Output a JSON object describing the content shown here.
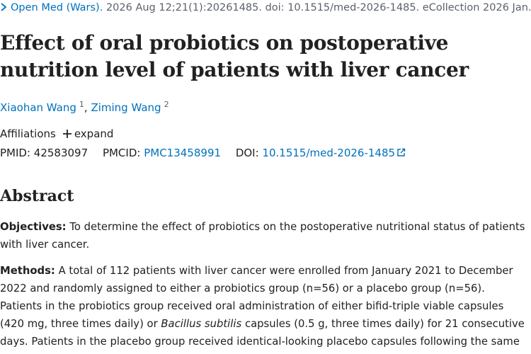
{
  "citation": {
    "journal": "Open Med (Wars).",
    "details": "2026 Aug 12;21(1):20261485. doi: 10.1515/med-2026-1485. eCollection 2026 Jan."
  },
  "title": "Effect of oral probiotics on postoperative nutrition level of patients with liver cancer",
  "authors": [
    {
      "name": "Xiaohan Wang",
      "affiliation": "1"
    },
    {
      "name": "Ziming Wang",
      "affiliation": "2"
    }
  ],
  "author_separator": ",",
  "affiliations": {
    "label": "Affiliations",
    "toggle": "expand"
  },
  "identifiers": {
    "pmid_label": "PMID:",
    "pmid": "42583097",
    "pmcid_label": "PMCID:",
    "pmcid": "PMC13458991",
    "doi_label": "DOI:",
    "doi": "10.1515/med-2026-1485"
  },
  "abstract": {
    "heading": "Abstract",
    "objectives": {
      "label": "Objectives:",
      "text": "To determine the effect of probiotics on the postoperative nutritional status of patients with liver cancer."
    },
    "methods": {
      "label": "Methods:",
      "text_before": "A total of 112 patients with liver cancer were enrolled from January 2021 to December 2022 and randomly assigned to either a probiotics group (n=56) or a placebo group (n=56). Patients in the probiotics group received oral administration of either bifid-triple viable capsules (420 mg, three times daily) or",
      "italic": "Bacillus subtilis",
      "text_after": "capsules (0.5 g, three times daily) for 21 consecutive days. Patients in the placebo group received identical-looking placebo capsules following the same"
    }
  }
}
